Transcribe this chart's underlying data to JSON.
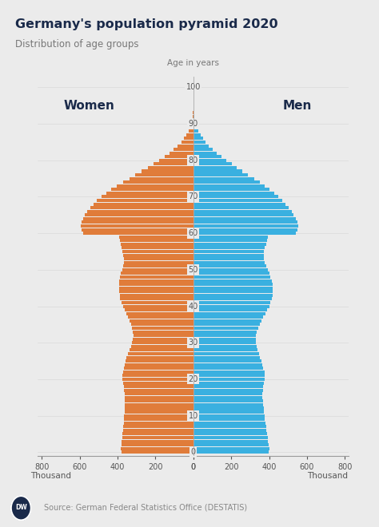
{
  "title": "Germany's population pyramid 2020",
  "subtitle": "Distribution of age groups",
  "source": "Source: German Federal Statistics Office (DESTATIS)",
  "age_label": "Age in years",
  "women_label": "Women",
  "men_label": "Men",
  "thousand_label": "Thousand",
  "background_color": "#ebebeb",
  "women_color": "#e07c3a",
  "men_color": "#3ab0e0",
  "title_color": "#1a2a4a",
  "subtitle_color": "#777777",
  "ages": [
    0,
    1,
    2,
    3,
    4,
    5,
    6,
    7,
    8,
    9,
    10,
    11,
    12,
    13,
    14,
    15,
    16,
    17,
    18,
    19,
    20,
    21,
    22,
    23,
    24,
    25,
    26,
    27,
    28,
    29,
    30,
    31,
    32,
    33,
    34,
    35,
    36,
    37,
    38,
    39,
    40,
    41,
    42,
    43,
    44,
    45,
    46,
    47,
    48,
    49,
    50,
    51,
    52,
    53,
    54,
    55,
    56,
    57,
    58,
    59,
    60,
    61,
    62,
    63,
    64,
    65,
    66,
    67,
    68,
    69,
    70,
    71,
    72,
    73,
    74,
    75,
    76,
    77,
    78,
    79,
    80,
    81,
    82,
    83,
    84,
    85,
    86,
    87,
    88,
    89,
    90,
    91,
    92,
    93,
    94,
    95,
    96,
    97,
    98,
    99,
    100
  ],
  "women": [
    380,
    382,
    380,
    378,
    376,
    374,
    372,
    370,
    368,
    366,
    364,
    363,
    362,
    361,
    360,
    360,
    362,
    365,
    368,
    372,
    375,
    375,
    372,
    368,
    363,
    358,
    352,
    345,
    338,
    330,
    322,
    318,
    316,
    318,
    322,
    328,
    335,
    343,
    352,
    362,
    372,
    380,
    385,
    388,
    390,
    392,
    393,
    392,
    388,
    382,
    375,
    370,
    368,
    368,
    370,
    373,
    378,
    383,
    388,
    392,
    580,
    590,
    595,
    590,
    582,
    572,
    560,
    545,
    528,
    508,
    485,
    460,
    432,
    402,
    370,
    338,
    305,
    272,
    240,
    210,
    180,
    152,
    126,
    103,
    82,
    64,
    48,
    35,
    24,
    15,
    9,
    5,
    3,
    2,
    1,
    1,
    0,
    0,
    0,
    0,
    0
  ],
  "men": [
    398,
    400,
    398,
    395,
    392,
    390,
    387,
    384,
    381,
    378,
    375,
    373,
    371,
    369,
    367,
    365,
    365,
    367,
    370,
    374,
    378,
    378,
    375,
    370,
    364,
    358,
    352,
    346,
    340,
    334,
    330,
    330,
    332,
    336,
    342,
    350,
    360,
    370,
    380,
    390,
    400,
    408,
    414,
    418,
    420,
    420,
    418,
    414,
    408,
    400,
    392,
    384,
    378,
    374,
    373,
    374,
    378,
    383,
    388,
    393,
    540,
    548,
    552,
    548,
    540,
    530,
    518,
    504,
    488,
    470,
    450,
    428,
    404,
    378,
    350,
    320,
    290,
    260,
    230,
    202,
    174,
    148,
    124,
    103,
    83,
    65,
    50,
    37,
    26,
    17,
    10,
    6,
    4,
    2,
    1,
    1,
    0,
    0,
    0,
    0,
    0
  ]
}
